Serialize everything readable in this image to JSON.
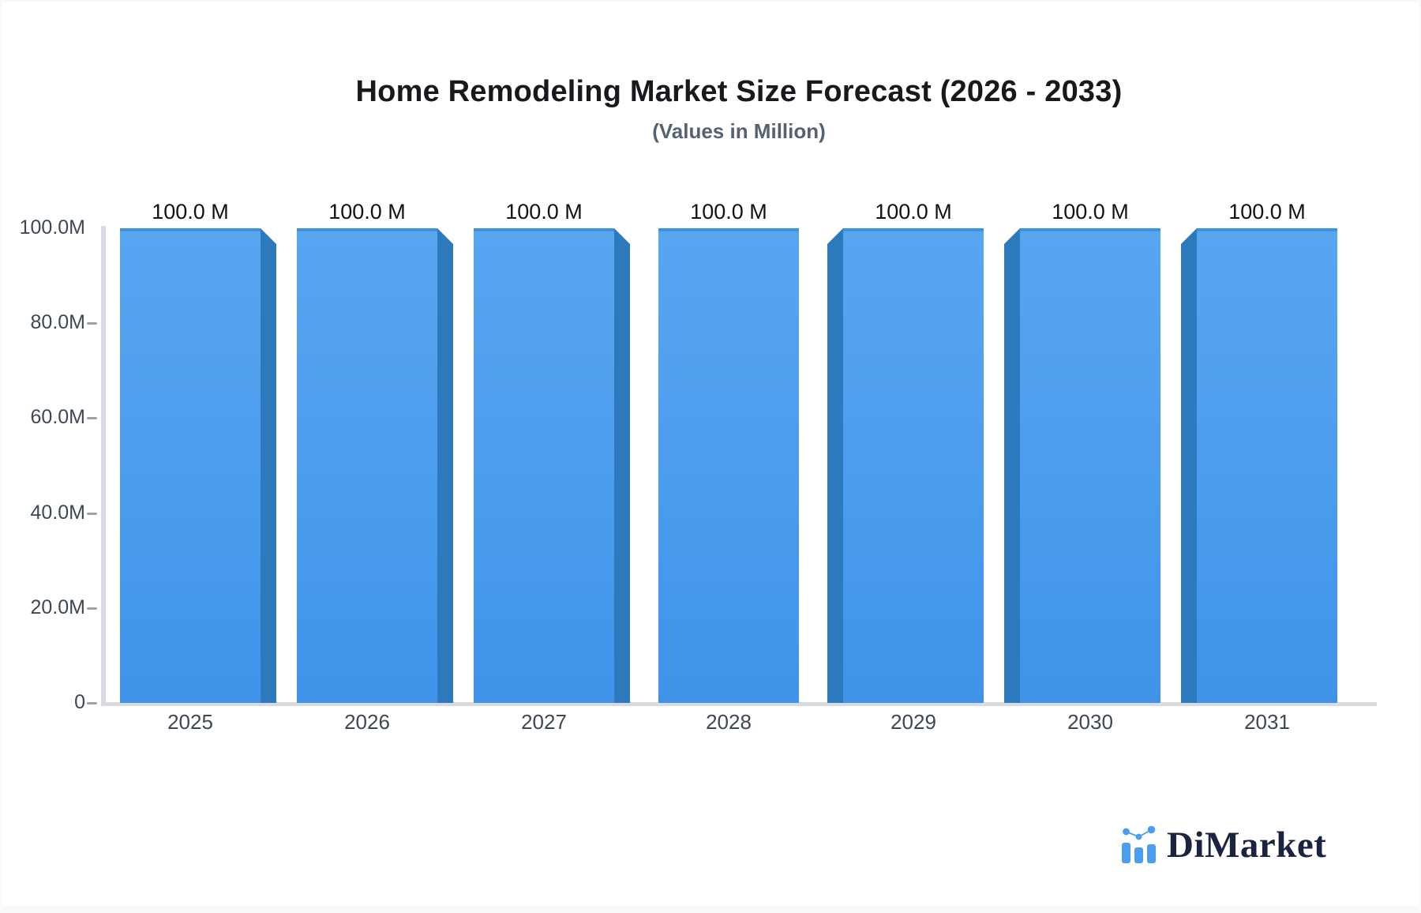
{
  "page": {
    "background": "#f7f9fb",
    "card_background": "#ffffff"
  },
  "chart_data": {
    "type": "bar",
    "title": "Home Remodeling Market Size Forecast (2026 - 2033)",
    "subtitle": "(Values in Million)",
    "categories": [
      "2025",
      "2026",
      "2027",
      "2028",
      "2029",
      "2030",
      "2031"
    ],
    "values": [
      100.0,
      100.0,
      100.0,
      100.0,
      100.0,
      100.0,
      100.0
    ],
    "value_labels": [
      "100.0 M",
      "100.0 M",
      "100.0 M",
      "100.0 M",
      "100.0 M",
      "100.0 M",
      "100.0 M"
    ],
    "unit": "Million",
    "ylim": [
      0,
      100
    ],
    "y_ticks": [
      {
        "value": 100,
        "label": "100.0M",
        "mark": false
      },
      {
        "value": 80,
        "label": "80.0M",
        "mark": true
      },
      {
        "value": 60,
        "label": "60.0M",
        "mark": true
      },
      {
        "value": 40,
        "label": "40.0M",
        "mark": true
      },
      {
        "value": 20,
        "label": "20.0M",
        "mark": true
      },
      {
        "value": 0,
        "label": "0",
        "mark": true
      }
    ],
    "xlabel": "",
    "ylabel": "",
    "grid": false,
    "legend": false,
    "bar_style": "3d-beveled",
    "value_labels_position": "above-bars"
  },
  "branding": {
    "logo_text": "DiMarket",
    "logo_icon": "bar-chart-with-trendline-icon"
  },
  "colors": {
    "bar_face_top": "#58a6f0",
    "bar_face_bottom": "#3f94ea",
    "bar_top_edge": "#3f90e0",
    "bar_side": "#2d79be",
    "axis_line": "#d7dade",
    "tick_mark": "#9aa3ad",
    "axis_label": "#3d4854",
    "value_label": "#121212",
    "title": "#17191c",
    "subtitle": "#566271",
    "logo_text": "#1a2440",
    "logo_icon_blue": "#4a9df0"
  }
}
